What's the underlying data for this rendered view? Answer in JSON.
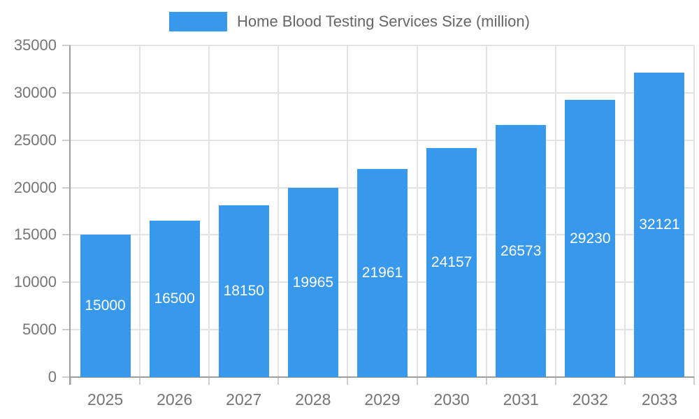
{
  "chart_data": {
    "type": "bar",
    "title": "Home Blood Testing Services Size (million)",
    "legend": {
      "label": "Home Blood Testing Services Size (million)",
      "position": "top"
    },
    "categories": [
      "2025",
      "2026",
      "2027",
      "2028",
      "2029",
      "2030",
      "2031",
      "2032",
      "2033"
    ],
    "series": [
      {
        "name": "Home Blood Testing Services Size (million)",
        "values": [
          15000,
          16500,
          18150,
          19965,
          21961,
          24157,
          26573,
          29230,
          32121
        ]
      }
    ],
    "value_labels": [
      "15000",
      "16500",
      "18150",
      "19965",
      "21961",
      "24157",
      "26573",
      "29230",
      "32121"
    ],
    "xlabel": "",
    "ylabel": "",
    "ylim": [
      0,
      35000
    ],
    "yticks": [
      0,
      5000,
      10000,
      15000,
      20000,
      25000,
      30000,
      35000
    ],
    "grid": true,
    "colors": {
      "bar": "#3899EC",
      "grid": "#E3E3E3",
      "axis": "#9E9E9E",
      "tick_mark": "#CDCDCD",
      "tick_label": "#757575",
      "legend_text": "#666666",
      "value_label": "#FFFFFF",
      "background": "#FFFFFF"
    }
  }
}
